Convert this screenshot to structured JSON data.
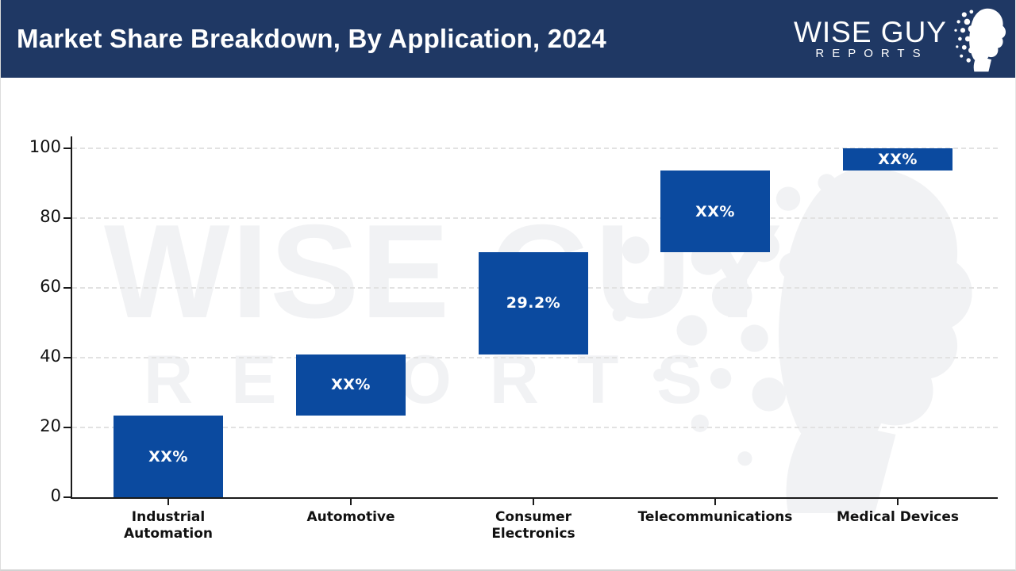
{
  "header": {
    "title": "Market Share Breakdown, By Application, 2024",
    "logo": {
      "line1": "WISE GUY",
      "line2": "REPORTS"
    }
  },
  "watermark": {
    "line1": "WISE GUY",
    "line2": "REPORTS"
  },
  "chart_data": {
    "type": "bar",
    "subtype": "waterfall",
    "title": "Market Share Breakdown, By Application, 2024",
    "xlabel": "",
    "ylabel": "",
    "ylim": [
      0,
      103.4
    ],
    "yticks": [
      0,
      20,
      40,
      60,
      80,
      100
    ],
    "grid": "horizontal-dashed",
    "legend": "none",
    "bar_color": "#0b4a9f",
    "categories": [
      "Industrial Automation",
      "Automotive",
      "Consumer Electronics",
      "Telecommunications",
      "Medical Devices"
    ],
    "category_lines": [
      [
        "Industrial",
        "Automation"
      ],
      [
        "Automotive"
      ],
      [
        "Consumer",
        "Electronics"
      ],
      [
        "Telecommunications"
      ],
      [
        "Medical Devices"
      ]
    ],
    "segments": [
      {
        "category": "Industrial Automation",
        "start": 0,
        "end": 23.4,
        "value": 23.4,
        "label": "XX%"
      },
      {
        "category": "Automotive",
        "start": 23.4,
        "end": 41.0,
        "value": 17.6,
        "label": "XX%"
      },
      {
        "category": "Consumer Electronics",
        "start": 41.0,
        "end": 70.2,
        "value": 29.2,
        "label": "29.2%"
      },
      {
        "category": "Telecommunications",
        "start": 70.2,
        "end": 93.6,
        "value": 23.4,
        "label": "XX%"
      },
      {
        "category": "Medical Devices",
        "start": 93.6,
        "end": 100.0,
        "value": 6.4,
        "label": "XX%"
      }
    ]
  },
  "colors": {
    "header_bg": "#1f3864",
    "bar": "#0b4a9f",
    "watermark": "#f1f2f4",
    "grid": "#e2e2e2",
    "axis": "#1a1a1a"
  }
}
